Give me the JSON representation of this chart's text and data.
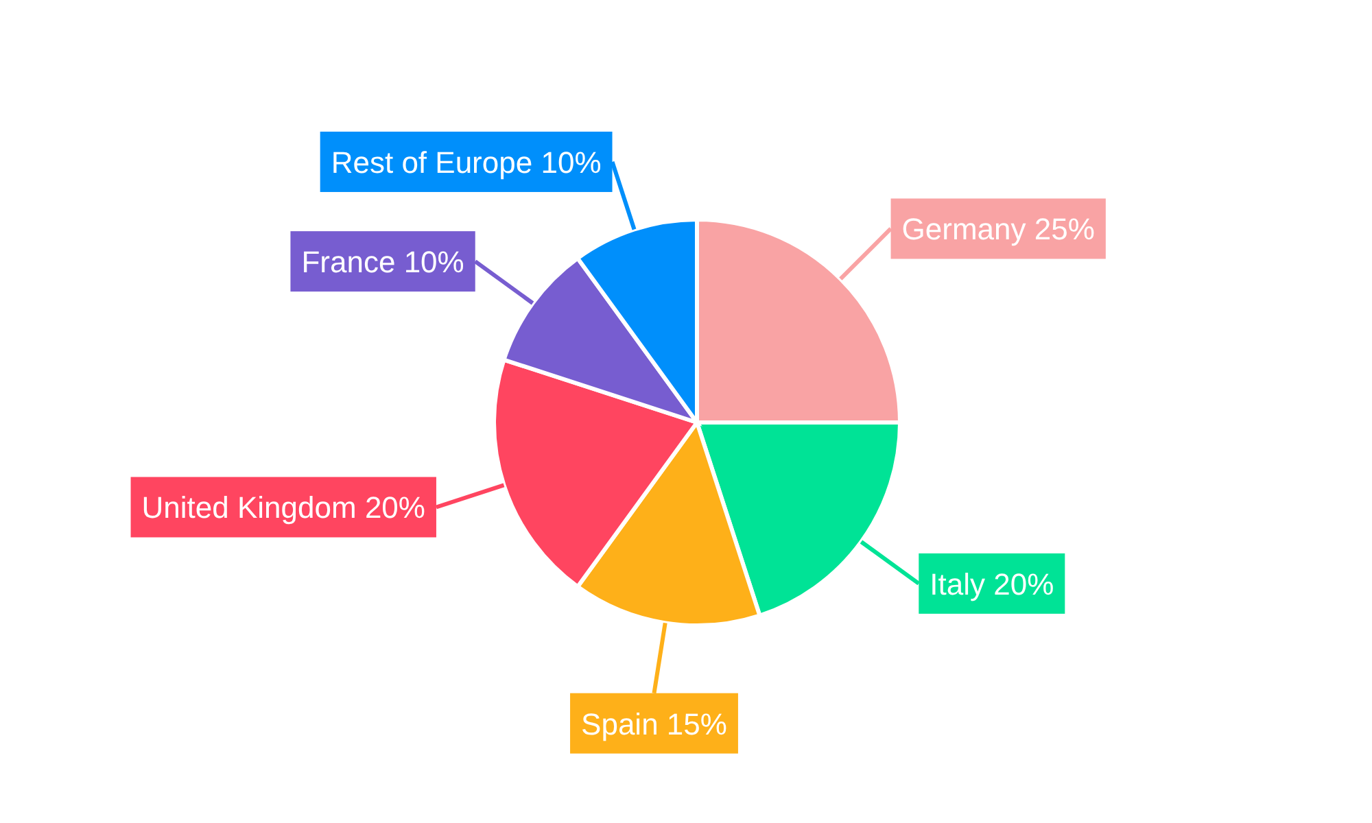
{
  "chart_data": {
    "type": "pie",
    "categories": [
      "Germany",
      "Italy",
      "Spain",
      "United Kingdom",
      "France",
      "Rest of Europe"
    ],
    "values": [
      25,
      20,
      15,
      20,
      10,
      10
    ],
    "colors": [
      "#f9a3a4",
      "#00e396",
      "#feb019",
      "#ff4560",
      "#775dd0",
      "#008ffb"
    ],
    "value_labels": [
      "25%",
      "20%",
      "15%",
      "20%",
      "10%",
      "10%"
    ]
  }
}
